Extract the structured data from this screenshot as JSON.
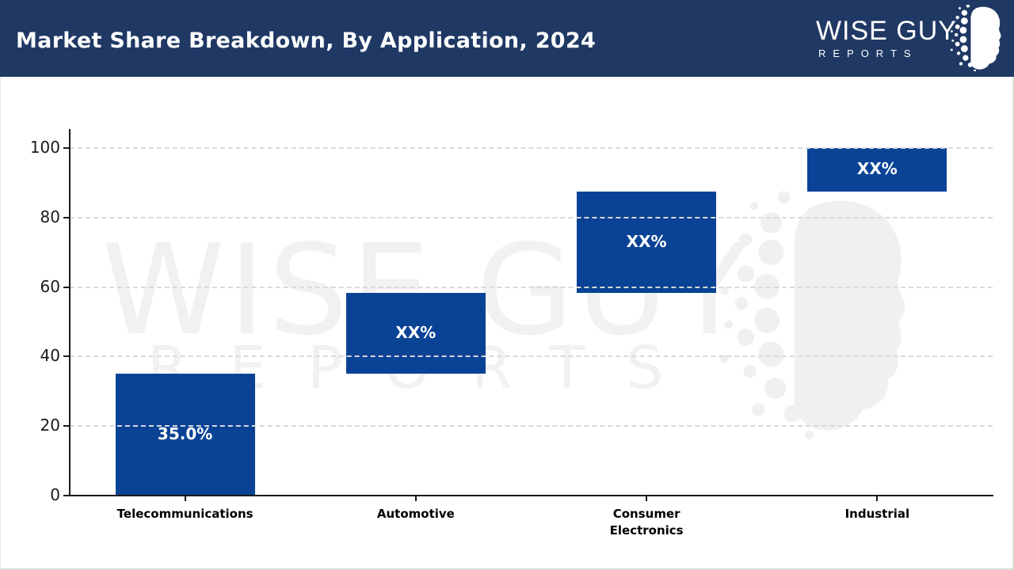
{
  "header": {
    "title": "Market Share Breakdown, By Application, 2024",
    "brand": {
      "name_line": "WISE GUY",
      "sub_line": "REPORTS"
    }
  },
  "watermark": {
    "name_line": "WISE GUY",
    "sub_line": "REPORTS"
  },
  "colors": {
    "header_bg": "#1f3864",
    "bar_fill": "#0a4396",
    "bar_label": "#ffffff",
    "gridline": "#d9d9d9",
    "axis": "#1a1a1a",
    "watermark": "#f1f1f1",
    "page_border": "#d8d8d8"
  },
  "chart_data": {
    "type": "bar",
    "variant": "waterfall",
    "title": "Market Share Breakdown, By Application, 2024",
    "categories": [
      "Telecommunications",
      "Automotive",
      "Consumer Electronics",
      "Industrial"
    ],
    "category_label_lines": [
      [
        "Telecommunications"
      ],
      [
        "Automotive"
      ],
      [
        "Consumer",
        "Electronics"
      ],
      [
        "Industrial"
      ]
    ],
    "segments": [
      {
        "category": "Telecommunications",
        "start": 0,
        "end": 35,
        "value_label": "35.0%"
      },
      {
        "category": "Automotive",
        "start": 35,
        "end": 58.3,
        "value_label": "XX%"
      },
      {
        "category": "Consumer Electronics",
        "start": 58.3,
        "end": 87.5,
        "value_label": "XX%"
      },
      {
        "category": "Industrial",
        "start": 87.5,
        "end": 100,
        "value_label": "XX%"
      }
    ],
    "xlabel": "",
    "ylabel": "",
    "yticks": [
      0,
      20,
      40,
      60,
      80,
      100
    ],
    "ylim": [
      0,
      105
    ],
    "grid": {
      "horizontal": true,
      "style": "dashed",
      "drawn_over_bars": true
    },
    "legend": "none"
  }
}
